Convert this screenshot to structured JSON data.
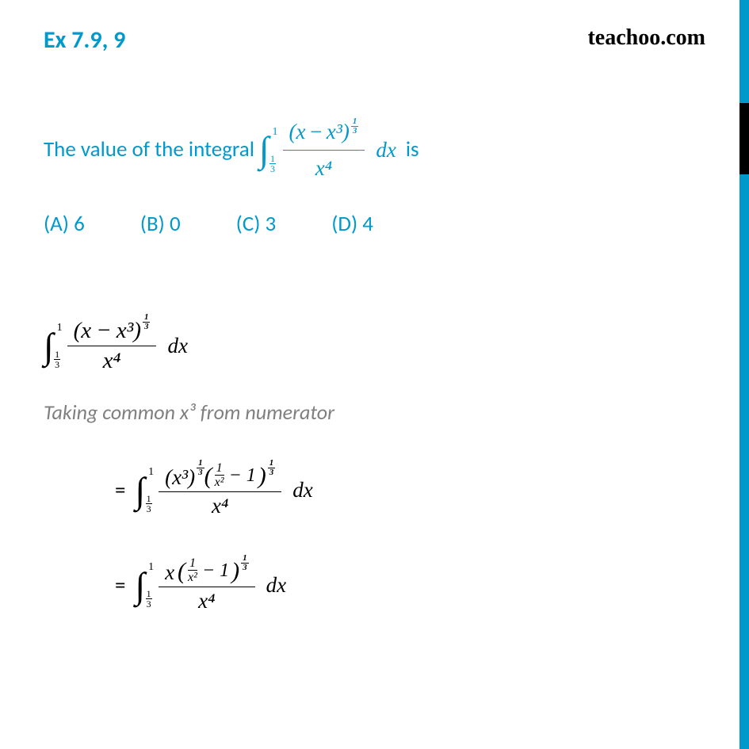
{
  "header": {
    "title": "Ex 7.9, 9",
    "site": "teachoo.com"
  },
  "question": {
    "prefix": "The value of the integral ",
    "suffix_is": "is"
  },
  "options": {
    "a": "(A) 6",
    "b": "(B) 0",
    "c": "(C) 3",
    "d": "(D) 4"
  },
  "work": {
    "comment": "Taking common x³ from numerator"
  },
  "math_tokens": {
    "dx": "dx",
    "eq": "=",
    "x": "x",
    "x3": "x³",
    "x4": "x⁴",
    "x2": "x²",
    "one": "1",
    "three": "3",
    "minus": "−",
    "minus1": "− 1",
    "lp": "(",
    "rp": ")"
  },
  "colors": {
    "accent": "#0099cc",
    "text": "#000000",
    "muted": "#7f7f7f",
    "bg": "#ffffff"
  }
}
